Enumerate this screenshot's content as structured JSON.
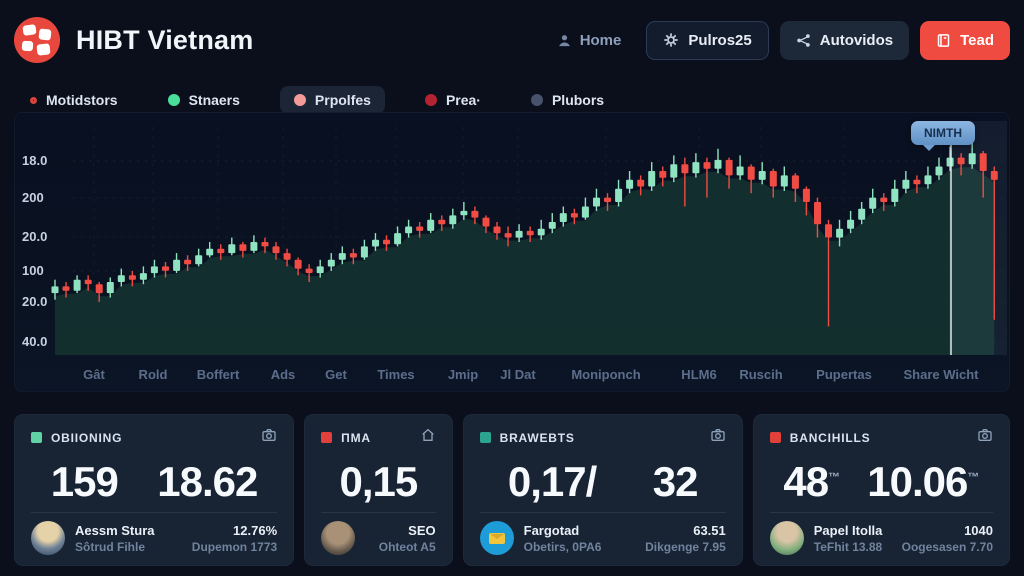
{
  "header": {
    "title": "HIBT Vietnam",
    "nav": {
      "home": "Home",
      "pulros": "Pulros25",
      "autovidos": "Autovidos",
      "tead": "Tead"
    }
  },
  "filters": {
    "items": [
      {
        "label": "Motidstors",
        "color": "#d8453c",
        "style": "ring",
        "active": false
      },
      {
        "label": "Stnaers",
        "color": "#4ade9b",
        "style": "dot",
        "active": false
      },
      {
        "label": "Prpolfes",
        "color": "#f49a98",
        "style": "dot",
        "active": true
      },
      {
        "label": "Prea·",
        "color": "#b42332",
        "style": "dot",
        "active": false
      },
      {
        "label": "Plubors",
        "color": "#46536b",
        "style": "dot",
        "active": false
      }
    ]
  },
  "chart": {
    "type": "candlestick",
    "tooltip": "NIMTH",
    "y_labels": [
      "18.0",
      "200",
      "20.0",
      "100",
      "20.0",
      "40.0"
    ],
    "x_labels": [
      "Gât",
      "Rold",
      "Boffert",
      "Ads",
      "Get",
      "Times",
      "Jmip",
      "Jl Dat",
      "Moniponch",
      "HLM6",
      "Ruscih",
      "Pupertas",
      "Share Wicht"
    ],
    "colors": {
      "up": "#8fe3c0",
      "down": "#f04c44",
      "area": "#143430",
      "grid": "rgba(160,190,230,0.07)",
      "crosshair": "#e8eef5"
    },
    "candles": [
      [
        27,
        30,
        33,
        24
      ],
      [
        30,
        28,
        32,
        25
      ],
      [
        28,
        33,
        35,
        27
      ],
      [
        33,
        31,
        35,
        28
      ],
      [
        31,
        27,
        32,
        23
      ],
      [
        27,
        32,
        34,
        25
      ],
      [
        32,
        35,
        38,
        30
      ],
      [
        35,
        33,
        37,
        30
      ],
      [
        33,
        36,
        39,
        31
      ],
      [
        36,
        39,
        42,
        34
      ],
      [
        39,
        37,
        41,
        34
      ],
      [
        37,
        42,
        45,
        36
      ],
      [
        42,
        40,
        44,
        37
      ],
      [
        40,
        44,
        47,
        39
      ],
      [
        44,
        47,
        50,
        43
      ],
      [
        47,
        45,
        49,
        42
      ],
      [
        45,
        49,
        52,
        44
      ],
      [
        49,
        46,
        50,
        43
      ],
      [
        46,
        50,
        53,
        45
      ],
      [
        50,
        48,
        52,
        45
      ],
      [
        48,
        45,
        50,
        42
      ],
      [
        45,
        42,
        47,
        39
      ],
      [
        42,
        38,
        43,
        35
      ],
      [
        38,
        36,
        40,
        32
      ],
      [
        36,
        39,
        42,
        34
      ],
      [
        39,
        42,
        45,
        37
      ],
      [
        42,
        45,
        48,
        40
      ],
      [
        45,
        43,
        47,
        40
      ],
      [
        43,
        48,
        51,
        42
      ],
      [
        48,
        51,
        54,
        46
      ],
      [
        51,
        49,
        53,
        46
      ],
      [
        49,
        54,
        57,
        48
      ],
      [
        54,
        57,
        60,
        52
      ],
      [
        57,
        55,
        59,
        52
      ],
      [
        55,
        60,
        63,
        54
      ],
      [
        60,
        58,
        62,
        55
      ],
      [
        58,
        62,
        65,
        56
      ],
      [
        62,
        64,
        68,
        60
      ],
      [
        64,
        61,
        66,
        58
      ],
      [
        61,
        57,
        62,
        54
      ],
      [
        57,
        54,
        59,
        51
      ],
      [
        54,
        52,
        57,
        48
      ],
      [
        52,
        55,
        58,
        50
      ],
      [
        55,
        53,
        57,
        50
      ],
      [
        53,
        56,
        60,
        51
      ],
      [
        56,
        59,
        63,
        54
      ],
      [
        59,
        63,
        66,
        57
      ],
      [
        63,
        61,
        65,
        58
      ],
      [
        61,
        66,
        70,
        60
      ],
      [
        66,
        70,
        74,
        64
      ],
      [
        70,
        68,
        72,
        64
      ],
      [
        68,
        74,
        78,
        66
      ],
      [
        74,
        78,
        82,
        72
      ],
      [
        78,
        75,
        80,
        71
      ],
      [
        75,
        82,
        86,
        73
      ],
      [
        82,
        79,
        84,
        75
      ],
      [
        79,
        85,
        89,
        77
      ],
      [
        85,
        81,
        88,
        66
      ],
      [
        81,
        86,
        90,
        79
      ],
      [
        86,
        83,
        88,
        70
      ],
      [
        83,
        87,
        92,
        81
      ],
      [
        87,
        80,
        88,
        74
      ],
      [
        80,
        84,
        89,
        78
      ],
      [
        84,
        78,
        85,
        72
      ],
      [
        78,
        82,
        86,
        76
      ],
      [
        82,
        75,
        83,
        70
      ],
      [
        75,
        80,
        84,
        73
      ],
      [
        80,
        74,
        81,
        68
      ],
      [
        74,
        68,
        75,
        62
      ],
      [
        68,
        58,
        70,
        52
      ],
      [
        58,
        52,
        60,
        12
      ],
      [
        52,
        56,
        60,
        48
      ],
      [
        56,
        60,
        64,
        54
      ],
      [
        60,
        65,
        68,
        58
      ],
      [
        65,
        70,
        74,
        63
      ],
      [
        70,
        68,
        72,
        64
      ],
      [
        68,
        74,
        78,
        66
      ],
      [
        74,
        78,
        82,
        72
      ],
      [
        78,
        76,
        80,
        72
      ],
      [
        76,
        80,
        84,
        74
      ],
      [
        80,
        84,
        88,
        78
      ],
      [
        84,
        88,
        93,
        82
      ],
      [
        88,
        85,
        90,
        80
      ],
      [
        85,
        90,
        95,
        83
      ],
      [
        90,
        82,
        91,
        70
      ],
      [
        82,
        78,
        84,
        15
      ]
    ]
  },
  "cards": [
    {
      "title": "OBIIONING",
      "accent": "#5fd3a5",
      "head_icon": "camera",
      "value1": "159",
      "value2": "18.62",
      "person": "Aessm Stura",
      "person_sub": "Sôtrud Fihle",
      "right_top": "12.76%",
      "right_bottom": "Dupemon 1773"
    },
    {
      "title": "ПMA",
      "accent": "#e2403a",
      "head_icon": "home",
      "value1": "0,15",
      "right_top": "SEO",
      "right_bottom": "Ohteot A5"
    },
    {
      "title": "BRAWEBTS",
      "accent": "#2ba58f",
      "head_icon": "camera",
      "value1": "0,17/",
      "value2": "32",
      "person": "Fargotad",
      "person_sub": "Obetirs, 0PA6",
      "right_top": "63.51",
      "right_bottom": "Dikgenge 7.95"
    },
    {
      "title": "BANCIHILLS",
      "accent": "#e2403a",
      "head_icon": "camera",
      "value1": "48",
      "value1_sup": "™",
      "value2": "10.06",
      "value2_sup": "™",
      "person": "Papel Itolla",
      "person_sub": "TeFhit 13.88",
      "right_top": "1040",
      "right_bottom": "Oogesasen 7.70"
    }
  ]
}
